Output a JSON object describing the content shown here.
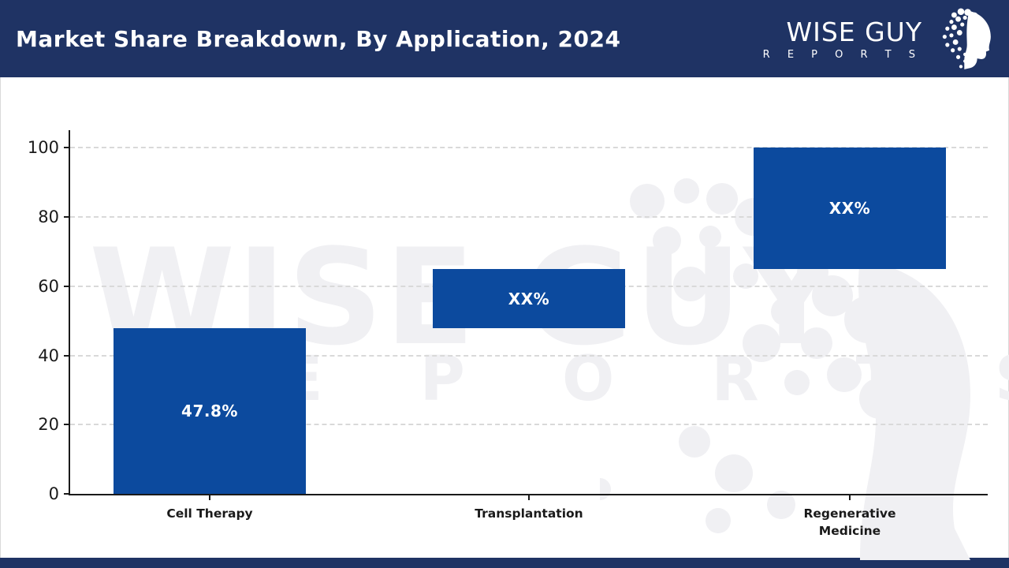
{
  "header": {
    "title": "Market Share Breakdown, By Application, 2024",
    "logo": {
      "wordmark": "WISE GUY",
      "subtext": "R E P O R T S"
    }
  },
  "watermark": {
    "wordmark": "WISE GUY",
    "subtext": "R E P O R T S"
  },
  "chart_data": {
    "type": "bar",
    "subtype": "floating-waterfall",
    "title": "Market Share Breakdown, By Application, 2024",
    "categories": [
      "Cell Therapy",
      "Transplantation",
      "Regenerative Medicine"
    ],
    "series": [
      {
        "name": "Market Share (%)",
        "segments": [
          {
            "category": "Cell Therapy",
            "from": 0,
            "to": 47.8,
            "label": "47.8%"
          },
          {
            "category": "Transplantation",
            "from": 47.8,
            "to": 65,
            "label": "XX%"
          },
          {
            "category": "Regenerative Medicine",
            "from": 65,
            "to": 100,
            "label": "XX%"
          }
        ]
      }
    ],
    "xlabel": "",
    "ylabel": "",
    "ylim": [
      0,
      105
    ],
    "yticks": [
      0,
      20,
      40,
      60,
      80,
      100
    ],
    "grid": "horizontal-dashed",
    "legend": "none"
  },
  "colors": {
    "header_bg": "#1f3364",
    "footer_bg": "#1f3364",
    "page_bg": "#ffffff",
    "bar": "#0c4a9e",
    "bar_label": "#ffffff",
    "grid": "#d9d9d9",
    "axis": "#1a1a1a",
    "watermark": "#f0f0f3"
  }
}
